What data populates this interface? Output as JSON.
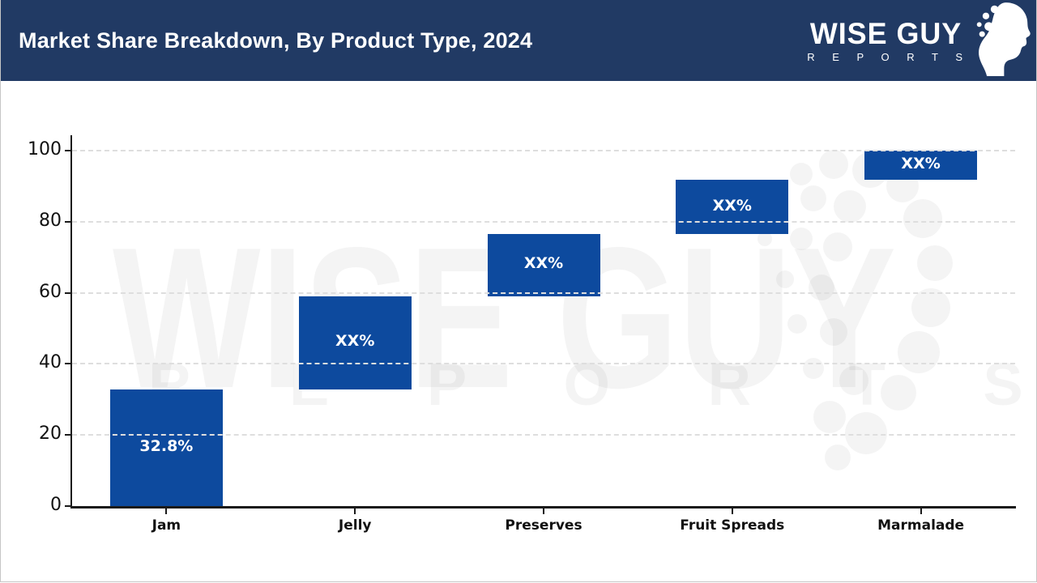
{
  "header": {
    "title": "Market Share Breakdown, By Product Type, 2024",
    "logo": {
      "line1": "WISE GUY",
      "line2": "R E P O R T S",
      "head_icon": "dotted-head-profile"
    }
  },
  "watermark": {
    "line1": "WISE GUY",
    "line2": "R E P O R T S",
    "head_icon": "dotted-head-profile"
  },
  "chart_data": {
    "type": "bar",
    "subtype": "waterfall",
    "title": "Market Share Breakdown, By Product Type, 2024",
    "categories": [
      "Jam",
      "Jelly",
      "Preserves",
      "Fruit Spreads",
      "Marmalade"
    ],
    "segments": [
      {
        "category": "Jam",
        "start": 0,
        "end": 32.8,
        "label": "32.8%"
      },
      {
        "category": "Jelly",
        "start": 32.8,
        "end": 59.1,
        "label": "XX%"
      },
      {
        "category": "Preserves",
        "start": 59.1,
        "end": 76.5,
        "label": "XX%"
      },
      {
        "category": "Fruit Spreads",
        "start": 76.5,
        "end": 91.8,
        "label": "XX%"
      },
      {
        "category": "Marmalade",
        "start": 91.8,
        "end": 100,
        "label": "XX%"
      }
    ],
    "xlabel": "",
    "ylabel": "",
    "ylim": [
      0,
      100
    ],
    "yticks": [
      0,
      20,
      40,
      60,
      80,
      100
    ],
    "grid": "horizontal-dashed-over-bars",
    "legend": "none",
    "bar_color": "#0d4a9e",
    "bar_label_color": "#ffffff",
    "header_bg_color": "#213a64",
    "axis_color": "#1a1a1a",
    "grid_color": "#dedede"
  }
}
